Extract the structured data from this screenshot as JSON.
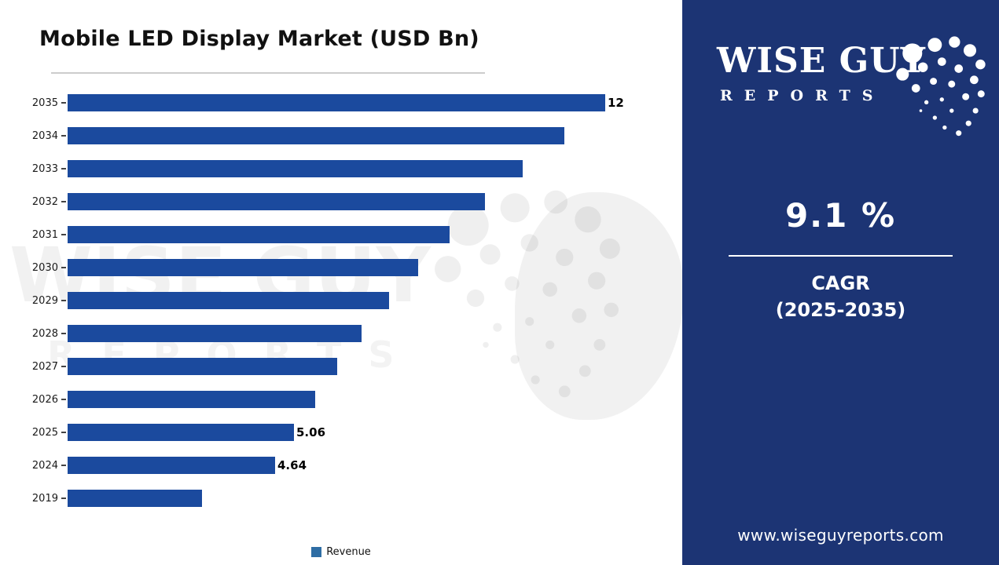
{
  "title": "Mobile LED Display Market (USD Bn)",
  "colors": {
    "bar": "#1b4a9e",
    "legend_marker": "#2e6da4",
    "panel_bg": "#1c3474"
  },
  "chart_data": {
    "type": "bar",
    "orientation": "horizontal",
    "title": "Mobile LED Display Market (USD Bn)",
    "xlabel": "",
    "ylabel": "",
    "xlim": [
      0,
      12.6
    ],
    "grid": false,
    "legend": [
      "Revenue"
    ],
    "legend_position": "bottom-center",
    "categories": [
      "2035",
      "2034",
      "2033",
      "2032",
      "2031",
      "2030",
      "2029",
      "2028",
      "2027",
      "2026",
      "2025",
      "2024",
      "2019"
    ],
    "values": [
      12,
      11.08,
      10.15,
      9.31,
      8.53,
      7.82,
      7.17,
      6.57,
      6.02,
      5.52,
      5.06,
      4.64,
      3.0
    ],
    "data_labels": [
      "12",
      "",
      "",
      "",
      "",
      "",
      "",
      "",
      "",
      "",
      "5.06",
      "4.64",
      ""
    ]
  },
  "legend": {
    "label": "Revenue"
  },
  "panel": {
    "logo_line1": "WISE GUY",
    "logo_line2": "REPORTS",
    "cagr_value": "9.1 %",
    "cagr_label": "CAGR",
    "cagr_period": "(2025-2035)",
    "website": "www.wiseguyreports.com"
  },
  "watermark": {
    "line1": "WISE GUY",
    "line2": "REPORTS"
  }
}
